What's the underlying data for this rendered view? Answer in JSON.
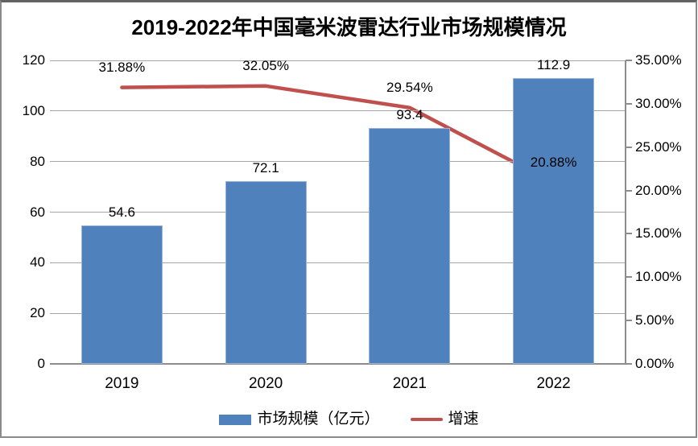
{
  "chart_data": {
    "type": "combo-bar-line",
    "title": "2019-2022年中国毫米波雷达行业市场规模情况",
    "categories": [
      "2019",
      "2020",
      "2021",
      "2022"
    ],
    "series": [
      {
        "name": "市场规模（亿元）",
        "type": "bar",
        "axis": "left",
        "color": "#4f81bd",
        "values": [
          54.6,
          72.1,
          93.4,
          112.9
        ],
        "labels": [
          "54.6",
          "72.1",
          "93.4",
          "112.9"
        ]
      },
      {
        "name": "增速",
        "type": "line",
        "axis": "right",
        "color": "#c0504d",
        "values": [
          31.88,
          32.05,
          29.54,
          20.88
        ],
        "labels": [
          "31.88%",
          "32.05%",
          "29.54%",
          "20.88%"
        ]
      }
    ],
    "left_axis": {
      "min": 0,
      "max": 120,
      "step": 20,
      "tick_labels": [
        "0",
        "20",
        "40",
        "60",
        "80",
        "100",
        "120"
      ]
    },
    "right_axis": {
      "min": 0,
      "max": 35,
      "step": 5,
      "tick_labels": [
        "0.00%",
        "5.00%",
        "10.00%",
        "15.00%",
        "20.00%",
        "25.00%",
        "30.00%",
        "35.00%"
      ]
    },
    "grid": true,
    "legend_position": "bottom",
    "colors": {
      "gridline": "#a6a6a6",
      "axis": "#8c8c8c",
      "text": "#000000",
      "frame_border": "#8a8a8a"
    }
  }
}
